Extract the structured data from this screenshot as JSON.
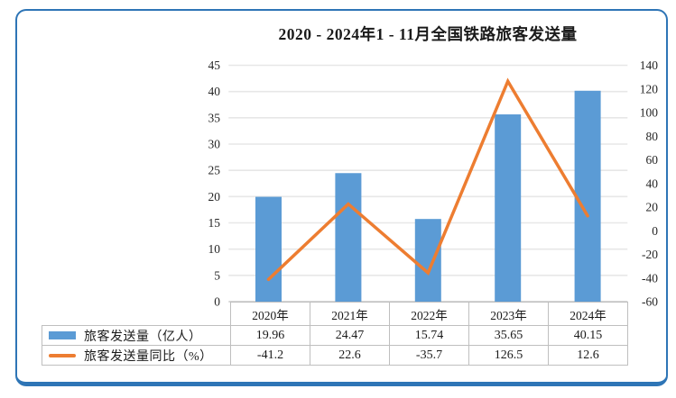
{
  "chart": {
    "title": "2020 - 2024年1 - 11月全国铁路旅客发送量"
  },
  "chart_data": {
    "type": "combo",
    "title": "2020 - 2024年1 - 11月全国铁路旅客发送量",
    "categories": [
      "2020年",
      "2021年",
      "2022年",
      "2023年",
      "2024年"
    ],
    "series": [
      {
        "name": "旅客发送量（亿人）",
        "type": "bar",
        "axis": "left",
        "color": "#5B9BD5",
        "values": [
          19.96,
          24.47,
          15.74,
          35.65,
          40.15
        ]
      },
      {
        "name": "旅客发送量同比（%）",
        "type": "line",
        "axis": "right",
        "color": "#ED7D31",
        "values": [
          -41.2,
          22.6,
          -35.7,
          126.5,
          12.6
        ]
      }
    ],
    "left_axis": {
      "min": 0,
      "max": 45,
      "step": 5,
      "ticks": [
        45,
        40,
        35,
        30,
        25,
        20,
        15,
        10,
        5,
        0
      ]
    },
    "right_axis": {
      "min": -60,
      "max": 140,
      "step": 20,
      "ticks": [
        140,
        120,
        100,
        80,
        60,
        40,
        20,
        0,
        -20,
        -40,
        -60
      ]
    },
    "grid": true,
    "legend_position": "table-left",
    "colors": {
      "bar": "#5B9BD5",
      "line": "#ED7D31",
      "frame_border": "#2E75B6",
      "gridline": "#E7E7E7",
      "axis_line": "#BFBFBF",
      "table_border": "#BFBFBF",
      "text": "#1a1a1a"
    }
  }
}
